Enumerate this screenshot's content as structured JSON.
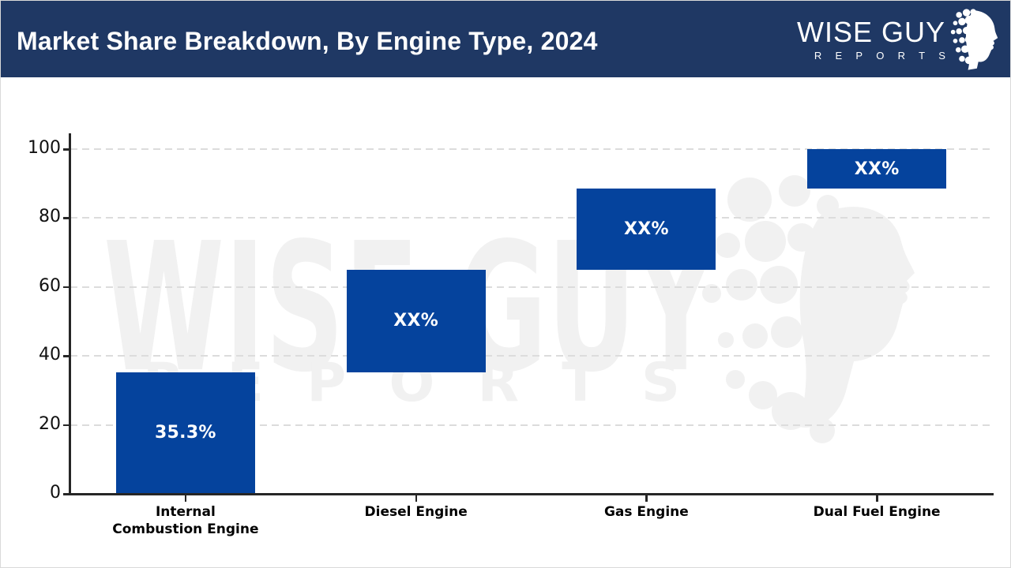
{
  "page": {
    "background_color": "#ffffff",
    "border_color": "#d9d9d9"
  },
  "header": {
    "title": "Market Share Breakdown, By Engine Type, 2024",
    "background_color": "#1f3864",
    "text_color": "#ffffff",
    "logo": {
      "line1": "WISE GUY",
      "line2": "REPORTS"
    }
  },
  "watermark": {
    "line1": "WISE GUY",
    "line2": "REPORTS",
    "color": "#f1f1f1"
  },
  "chart_data": {
    "type": "bar",
    "subtype": "floating-waterfall",
    "title": "Market Share Breakdown, By Engine Type, 2024",
    "xlabel": "",
    "ylabel": "",
    "ylim": [
      0,
      104
    ],
    "yticks": [
      0,
      20,
      40,
      60,
      80,
      100
    ],
    "grid": "horizontal-dashed",
    "grid_color": "#dcdcdc",
    "axis_color": "#262626",
    "bar_color": "#05439d",
    "bar_label_color": "#ffffff",
    "categories": [
      "Internal Combustion Engine",
      "Diesel Engine",
      "Gas Engine",
      "Dual Fuel Engine"
    ],
    "category_lines": [
      [
        "Internal",
        "Combustion Engine"
      ],
      [
        "Diesel Engine"
      ],
      [
        "Gas Engine"
      ],
      [
        "Dual Fuel Engine"
      ]
    ],
    "bars": [
      {
        "category": "Internal Combustion Engine",
        "from": 0,
        "to": 35.3,
        "label": "35.3%"
      },
      {
        "category": "Diesel Engine",
        "from": 35.3,
        "to": 65,
        "label": "XX%"
      },
      {
        "category": "Gas Engine",
        "from": 65,
        "to": 88.5,
        "label": "XX%"
      },
      {
        "category": "Dual Fuel Engine",
        "from": 88.5,
        "to": 100,
        "label": "XX%"
      }
    ]
  }
}
